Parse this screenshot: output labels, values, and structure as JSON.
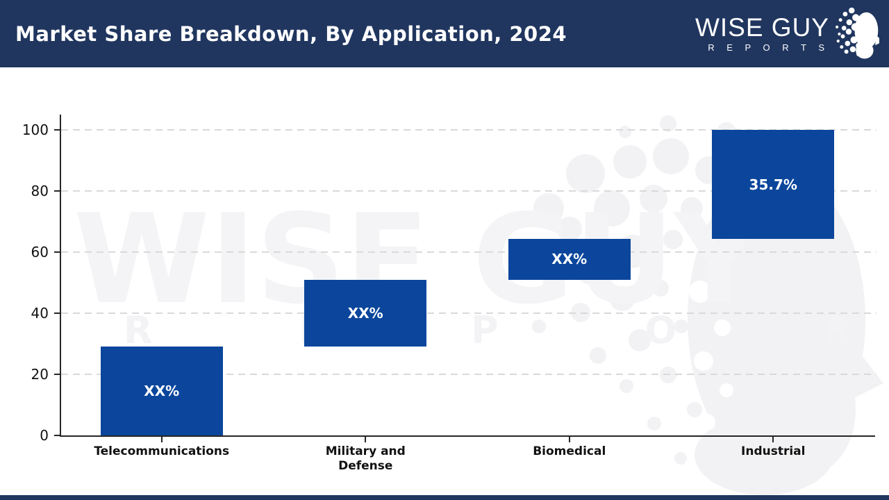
{
  "header": {
    "title": "Market Share Breakdown, By Application, 2024",
    "logo": {
      "wordmark": "WISE GUY",
      "subtext": "R E P O R T S"
    }
  },
  "watermark": {
    "line1": "WISE GUY",
    "line2": "R E P O R T S"
  },
  "chart_data": {
    "type": "bar",
    "variant": "waterfall",
    "title": "Market Share Breakdown, By Application, 2024",
    "categories": [
      "Telecommunications",
      "Military and Defense",
      "Biomedical",
      "Industrial"
    ],
    "category_lines": [
      [
        "Telecommunications"
      ],
      [
        "Military and",
        "Defense"
      ],
      [
        "Biomedical"
      ],
      [
        "Industrial"
      ]
    ],
    "segments": [
      {
        "category": "Telecommunications",
        "start": 0,
        "end": 29,
        "label": "XX%"
      },
      {
        "category": "Military and Defense",
        "start": 29,
        "end": 51,
        "label": "XX%"
      },
      {
        "category": "Biomedical",
        "start": 51,
        "end": 64.3,
        "label": "XX%"
      },
      {
        "category": "Industrial",
        "start": 64.3,
        "end": 100,
        "label": "35.7%"
      }
    ],
    "yticks": [
      0,
      20,
      40,
      60,
      80,
      100
    ],
    "ylim": [
      0,
      105
    ],
    "xlabel": "",
    "ylabel": "",
    "grid": "horizontal-dashed",
    "legend": "none"
  },
  "colors": {
    "header_bg": "#20365f",
    "footer_bg": "#20365f",
    "bar": "#0b469c",
    "bar_label": "#ffffff",
    "grid": "#d9d9d9",
    "axis": "#262626",
    "tick_label": "#111111",
    "watermark": "#f2f2f4",
    "background": "#ffffff"
  }
}
